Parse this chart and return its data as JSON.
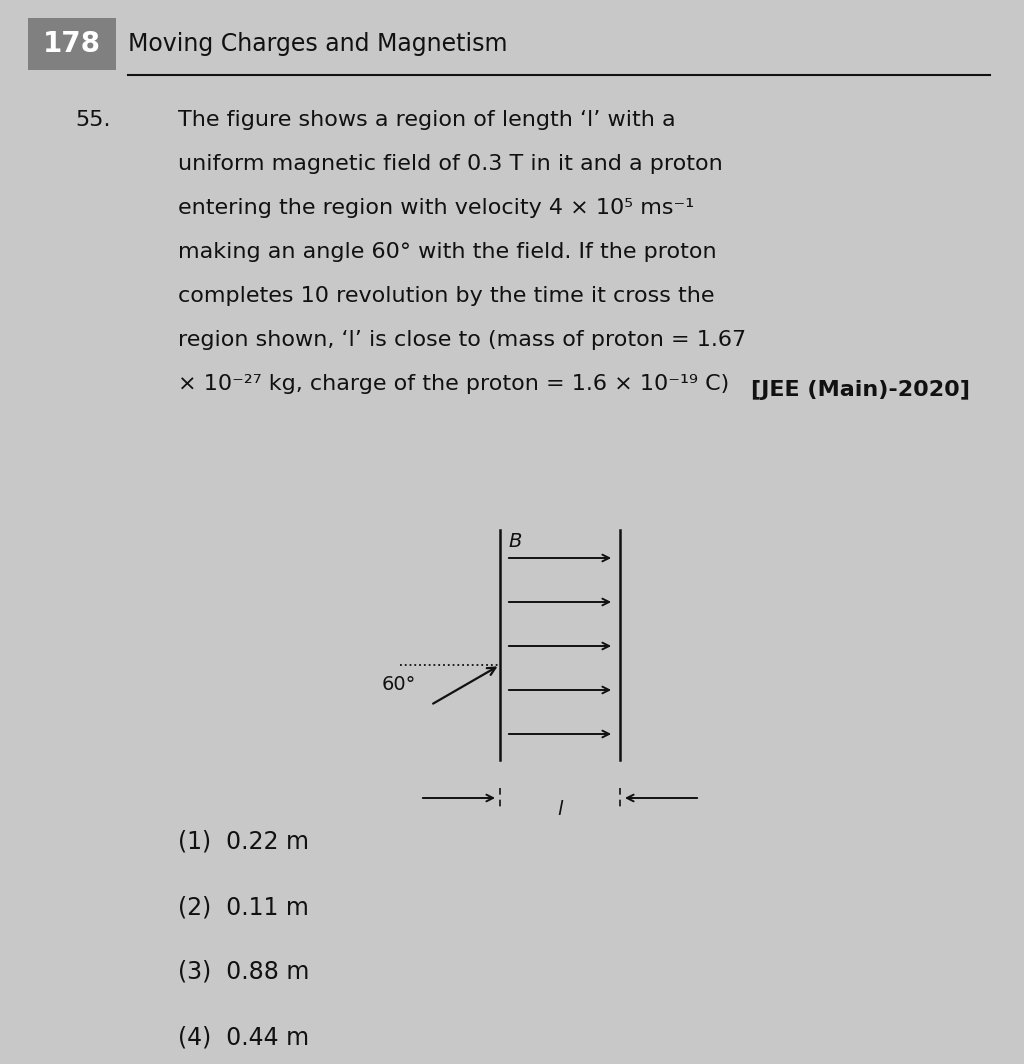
{
  "page_bg": "#c8c8c8",
  "header_box_color": "#808080",
  "header_number": "178",
  "header_title": "Moving Charges and Magnetism",
  "text_color": "#111111",
  "line_color": "#111111",
  "question_number": "55.",
  "lines": [
    "The figure shows a region of length ‘l’ with a",
    "uniform magnetic field of 0.3 T in it and a proton",
    "entering the region with velocity 4 × 10⁵ ms⁻¹",
    "making an angle 60° with the field. If the proton",
    "completes 10 revolution by the time it cross the",
    "region shown, ‘l’ is close to (mass of proton = 1.67",
    "× 10⁻²⁷ kg, charge of the proton = 1.6 × 10⁻¹⁹ C)"
  ],
  "source": "[JEE (Main)-2020]",
  "options": [
    "(1)  0.22 m",
    "(2)  0.11 m",
    "(3)  0.88 m",
    "(4)  0.44 m"
  ],
  "fig_width": 10.24,
  "fig_height": 10.64,
  "dpi": 100
}
